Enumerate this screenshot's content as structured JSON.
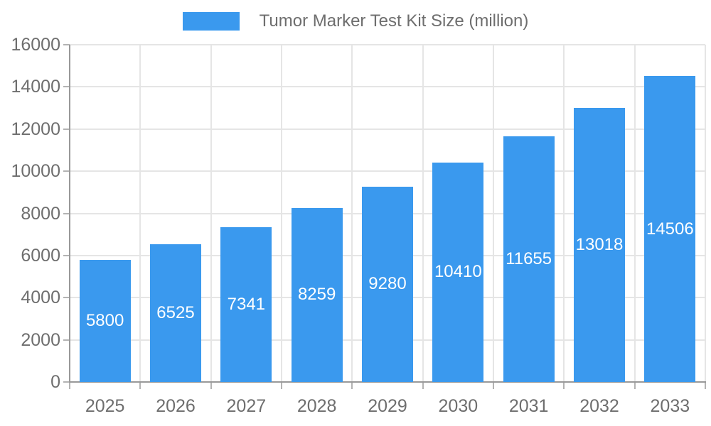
{
  "chart_data": {
    "type": "bar",
    "title": "",
    "legend_label": "Tumor Marker Test Kit Size (million)",
    "legend_position": "top",
    "categories": [
      "2025",
      "2026",
      "2027",
      "2028",
      "2029",
      "2030",
      "2031",
      "2032",
      "2033"
    ],
    "series": [
      {
        "name": "Tumor Marker Test Kit Size (million)",
        "values": [
          5800,
          6525,
          7341,
          8259,
          9280,
          10410,
          11655,
          13018,
          14506
        ]
      }
    ],
    "xlabel": "",
    "ylabel": "",
    "ylim": [
      0,
      16000
    ],
    "ytick_step": 2000,
    "yticks": [
      0,
      2000,
      4000,
      6000,
      8000,
      10000,
      12000,
      14000,
      16000
    ],
    "grid": "on",
    "bar_labels_inside": "centered, white",
    "colors": {
      "bar": "#3A99EE",
      "bar_label": "#FFFFFF",
      "grid": "#E5E5E5",
      "axis_line": "#999999",
      "tick": "#B3B3B3",
      "text": "#6E6E6E",
      "background": "#FFFFFF"
    }
  }
}
